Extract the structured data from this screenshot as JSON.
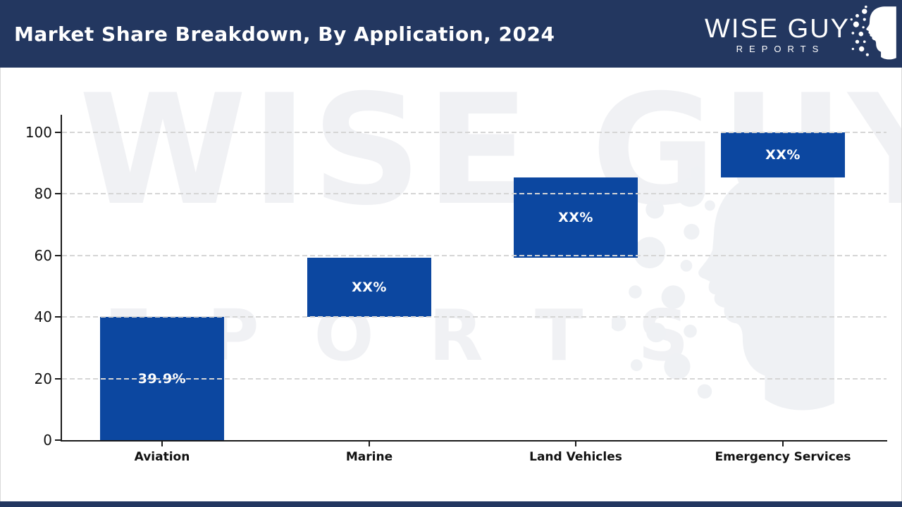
{
  "header": {
    "title": "Market Share Breakdown, By Application, 2024",
    "background_color": "#233760",
    "logo": {
      "line1": "WISE GUY",
      "line2": "REPORTS"
    }
  },
  "watermark": {
    "line1": "WISE GUY",
    "line2": "EPORTS"
  },
  "chart_data": {
    "type": "bar",
    "subtype": "waterfall",
    "title": "Market Share Breakdown, By Application, 2024",
    "categories": [
      "Aviation",
      "Marine",
      "Land Vehicles",
      "Emergency Services"
    ],
    "segments": [
      {
        "category": "Aviation",
        "start": 0,
        "end": 39.9,
        "label": "39.9%"
      },
      {
        "category": "Marine",
        "start": 39.9,
        "end": 59.2,
        "label": "XX%"
      },
      {
        "category": "Land Vehicles",
        "start": 59.2,
        "end": 85.3,
        "label": "XX%"
      },
      {
        "category": "Emergency Services",
        "start": 85.3,
        "end": 100,
        "label": "XX%"
      }
    ],
    "yticks": [
      0,
      20,
      40,
      60,
      80,
      100
    ],
    "ylim": [
      0,
      105
    ],
    "xlabel": "",
    "ylabel": "",
    "grid": "horizontal-dashed",
    "legend": "none",
    "bar_color": "#0c47a0",
    "bar_label_color": "#ffffff",
    "axis_color": "#1a1a1a"
  }
}
